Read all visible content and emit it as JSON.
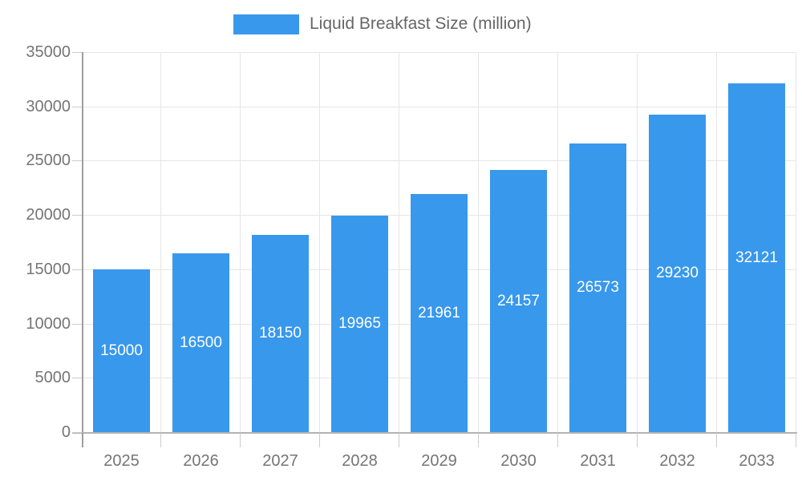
{
  "chart_data": {
    "type": "bar",
    "title": "Liquid Breakfast Size (million)",
    "legend_position": "top",
    "categories": [
      "2025",
      "2026",
      "2027",
      "2028",
      "2029",
      "2030",
      "2031",
      "2032",
      "2033"
    ],
    "values": [
      15000,
      16500,
      18150,
      19965,
      21961,
      24157,
      26573,
      29230,
      32121
    ],
    "bar_labels": [
      "15000",
      "16500",
      "18150",
      "19965",
      "21961",
      "24157",
      "26573",
      "29230",
      "32121"
    ],
    "xlabel": "",
    "ylabel": "",
    "ylim": [
      0,
      35000
    ],
    "ytick_step": 5000,
    "ytick_labels": [
      "0",
      "5000",
      "10000",
      "15000",
      "20000",
      "25000",
      "30000",
      "35000"
    ],
    "grid": true,
    "colors": {
      "bar": "#3898ec",
      "bar_label_text": "#ffffff",
      "gridline": "#e6e6e6",
      "axis_line": "#9e9e9e",
      "baseline": "#b3b3b3",
      "tick": "#cccccc",
      "tick_label_text": "#757575",
      "legend_text": "#666666"
    }
  }
}
